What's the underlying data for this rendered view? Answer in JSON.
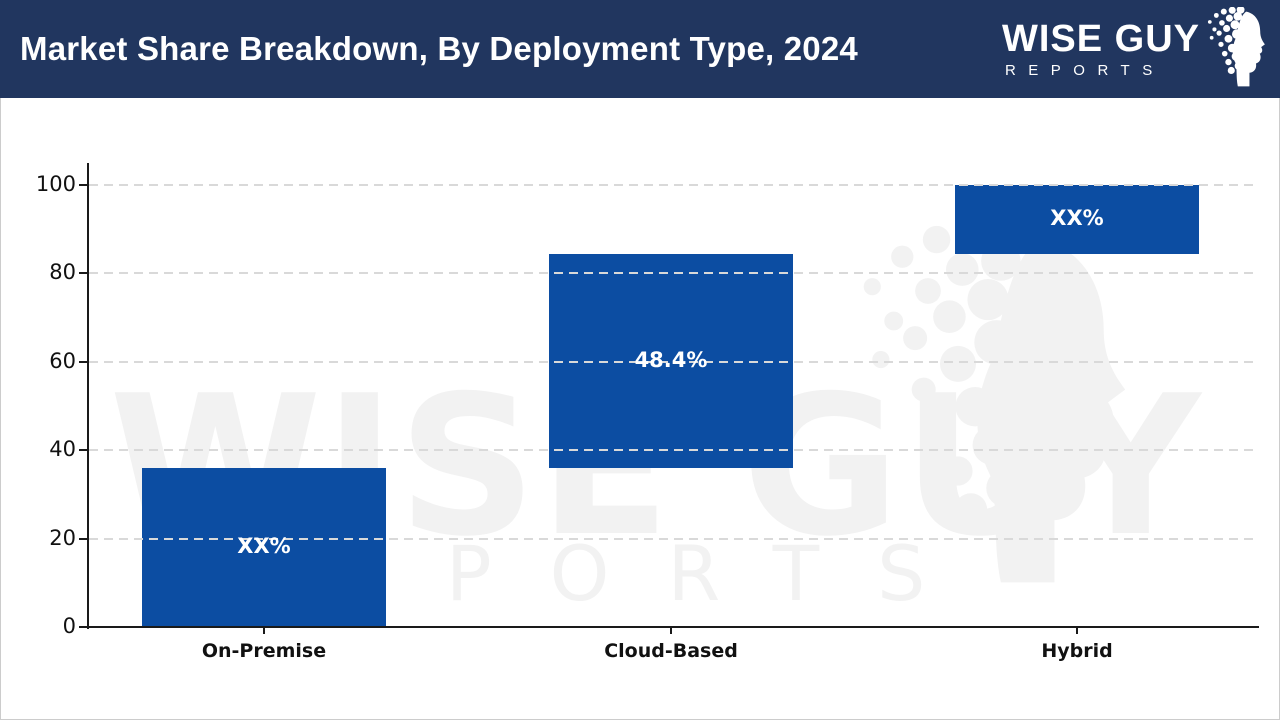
{
  "header": {
    "title": "Market Share Breakdown, By Deployment Type, 2024",
    "logo": {
      "wordmark": "WISE GUY",
      "tagline": "REPORTS"
    }
  },
  "watermark": {
    "wordmark": "WISE GUY",
    "tagline": "REPORTS"
  },
  "colors": {
    "header_bg": "#21365F",
    "bar": "#0C4DA2",
    "bar_label": "#FFFFFF",
    "gridline": "#D9D9D9",
    "watermark": "#F2F2F2",
    "axis": "#1A1A1A"
  },
  "chart_data": {
    "type": "bar",
    "subtype": "waterfall-style floating segment bars",
    "title": "Market Share Breakdown, By Deployment Type, 2024",
    "categories": [
      "On-Premise",
      "Cloud-Based",
      "Hybrid"
    ],
    "segments": [
      {
        "category": "On-Premise",
        "start": 0,
        "end": 36,
        "value_label": "XX%"
      },
      {
        "category": "Cloud-Based",
        "start": 36,
        "end": 84.4,
        "value_label": "48.4%"
      },
      {
        "category": "Hybrid",
        "start": 84.4,
        "end": 100,
        "value_label": "XX%"
      }
    ],
    "xlabel": "",
    "ylabel": "",
    "ylim": [
      0,
      100
    ],
    "yticks": [
      0,
      20,
      40,
      60,
      80,
      100
    ],
    "grid": "horizontal dashed gridlines drawn over bars",
    "legend": "none"
  }
}
